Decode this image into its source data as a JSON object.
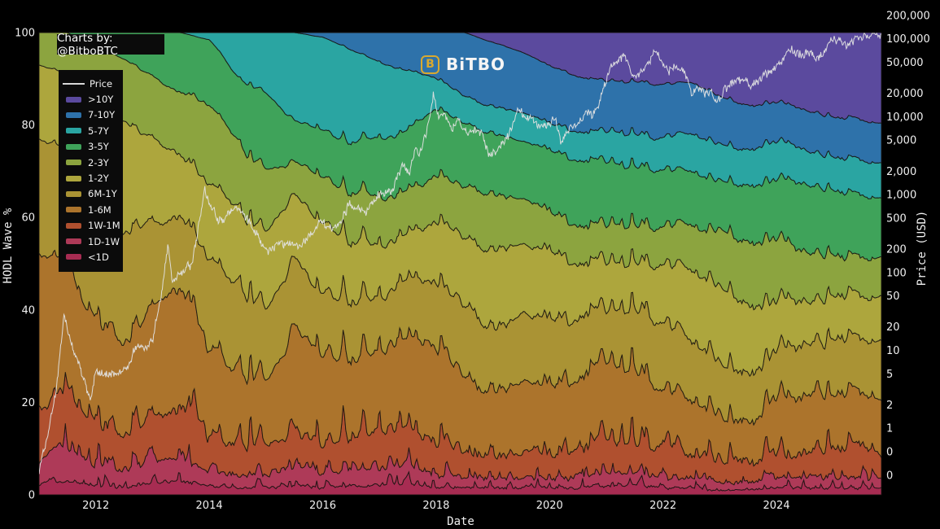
{
  "header": {
    "attribution": "Charts by: @BitboBTC",
    "logo_symbol": "B",
    "logo_text": "BiTBO"
  },
  "axes": {
    "x": {
      "title": "Date",
      "range": [
        2011.0,
        2025.85
      ],
      "ticks": [
        2012,
        2014,
        2016,
        2018,
        2020,
        2022,
        2024
      ]
    },
    "y_left": {
      "title": "HODL Wave %",
      "range": [
        0,
        100
      ],
      "ticks": [
        100,
        80,
        60,
        40,
        20,
        0
      ]
    },
    "y_right": {
      "title": "Price (USD)",
      "scale": "log",
      "ticks": [
        {
          "value": 200000,
          "label": "200,000"
        },
        {
          "value": 100000,
          "label": "100,000"
        },
        {
          "value": 50000,
          "label": "50,000"
        },
        {
          "value": 20000,
          "label": "20,000"
        },
        {
          "value": 10000,
          "label": "10,000"
        },
        {
          "value": 5000,
          "label": "5,000"
        },
        {
          "value": 2000,
          "label": "2,000"
        },
        {
          "value": 1000,
          "label": "1,000"
        },
        {
          "value": 500,
          "label": "500"
        },
        {
          "value": 200,
          "label": "200"
        },
        {
          "value": 100,
          "label": "100"
        },
        {
          "value": 50,
          "label": "50"
        },
        {
          "value": 20,
          "label": "20"
        },
        {
          "value": 10,
          "label": "10"
        },
        {
          "value": 5,
          "label": "5"
        },
        {
          "value": 2,
          "label": "2"
        },
        {
          "value": 1,
          "label": "1"
        },
        {
          "value": 0.5,
          "label": "0"
        },
        {
          "value": 0.25,
          "label": "0"
        }
      ]
    }
  },
  "colors": {
    "background": "#000000",
    "band_stroke": "#181410",
    "text": "#f0f0f0",
    "price_line": "#e2e2e2",
    "logo_gold": "#d9a92f"
  },
  "chart_data": {
    "type": "area",
    "stacked": true,
    "title": "",
    "xlabel": "Date",
    "ylabel_left": "HODL Wave %",
    "ylabel_right": "Price (USD)",
    "x_range": [
      2011.0,
      2025.85
    ],
    "x": [
      2011.0,
      2011.5,
      2012.0,
      2012.5,
      2013.0,
      2013.5,
      2014.0,
      2014.5,
      2015.0,
      2015.5,
      2016.0,
      2016.5,
      2017.0,
      2017.5,
      2018.0,
      2018.5,
      2019.0,
      2019.5,
      2020.0,
      2020.5,
      2021.0,
      2021.5,
      2022.0,
      2022.5,
      2023.0,
      2023.5,
      2024.0,
      2024.5,
      2025.0,
      2025.85
    ],
    "series": [
      {
        "name": "<1D",
        "color": "#a72c52",
        "values": [
          2,
          3,
          2,
          1.5,
          2.5,
          3,
          2,
          1.5,
          1.5,
          2,
          1.5,
          2,
          2,
          2.5,
          1.5,
          1.5,
          1.5,
          1.5,
          1.5,
          1.5,
          2,
          2,
          1.5,
          1.5,
          1,
          1,
          1.5,
          1.5,
          1.5,
          1.5
        ]
      },
      {
        "name": "1D-1W",
        "color": "#ae3a58",
        "values": [
          5,
          7,
          4,
          3.5,
          4.5,
          5,
          3,
          2.5,
          2.5,
          4,
          3,
          3,
          3.5,
          4,
          2.5,
          2,
          2,
          2,
          2,
          2,
          3,
          2.5,
          2,
          2,
          1.5,
          1.5,
          2,
          2,
          2,
          2
        ]
      },
      {
        "name": "1W-1M",
        "color": "#b0502f",
        "values": [
          10,
          12,
          8,
          7,
          9,
          10,
          7,
          6,
          6,
          6,
          6,
          6,
          7,
          8,
          6,
          5,
          4.5,
          5,
          5,
          5,
          7,
          6,
          5,
          5,
          4,
          4,
          5,
          5,
          5,
          5
        ]
      },
      {
        "name": "1-6M",
        "color": "#ac742c",
        "values": [
          34,
          28,
          22,
          20,
          24,
          26,
          19,
          16,
          14,
          22,
          20,
          17,
          18,
          20,
          21,
          16,
          14,
          15,
          15,
          15,
          17,
          16,
          12,
          12,
          9,
          9,
          12,
          13,
          12,
          12
        ]
      },
      {
        "name": "6M-1Y",
        "color": "#aa9334",
        "values": [
          26,
          24,
          26,
          25,
          18,
          15,
          20,
          18,
          16,
          15,
          13,
          13,
          12,
          12,
          14,
          16,
          14,
          14.5,
          14,
          13,
          11,
          13,
          15,
          13,
          12,
          10,
          10,
          11,
          12,
          12.5
        ]
      },
      {
        "name": "1-2Y",
        "color": "#ada63d",
        "values": [
          16,
          17,
          23,
          24,
          18,
          14,
          16.5,
          17,
          17,
          14.6,
          15,
          13,
          11,
          10,
          13,
          15,
          17,
          15.5,
          14.5,
          12,
          10,
          10,
          13,
          15,
          17,
          15,
          11,
          9,
          9,
          10
        ]
      },
      {
        "name": "2-3Y",
        "color": "#8ca43f",
        "values": [
          7,
          9,
          12,
          13,
          14,
          14,
          17,
          15,
          13,
          7.7,
          10,
          11,
          10,
          9,
          10,
          11,
          12,
          10,
          9,
          9,
          8,
          8,
          8.5,
          9.5,
          12,
          14,
          13.5,
          11,
          9,
          8
        ]
      },
      {
        "name": "3-5Y",
        "color": "#3fa35a",
        "values": [
          0,
          0,
          3,
          6,
          10,
          13,
          14,
          14,
          17,
          9.3,
          10,
          11,
          13,
          13,
          15,
          14,
          13,
          12,
          13,
          14,
          14,
          13,
          12,
          11.5,
          11,
          12,
          13,
          14.5,
          14.5,
          13
        ]
      },
      {
        "name": "5-7Y",
        "color": "#2aa5a2",
        "values": [
          0,
          0,
          0,
          0,
          0,
          0,
          1.5,
          10,
          13,
          19.4,
          20.5,
          20,
          17,
          13,
          7,
          6,
          6,
          6.2,
          6,
          6,
          6.5,
          7,
          7.5,
          8,
          8,
          8,
          8,
          7.5,
          7.5,
          7.5
        ]
      },
      {
        "name": "7-10Y",
        "color": "#2e72aa",
        "values": [
          0,
          0,
          0,
          0,
          0,
          0,
          0,
          0,
          0,
          0,
          1,
          4,
          6.5,
          8.5,
          10,
          13.5,
          14,
          13,
          12.5,
          12,
          11,
          11.5,
          12,
          11,
          10.5,
          10,
          9,
          8.5,
          9,
          9
        ]
      },
      {
        "name": ">10Y",
        "color": "#5b4a9e",
        "values": [
          0,
          0,
          0,
          0,
          0,
          0,
          0,
          0,
          0,
          0,
          0,
          0,
          0,
          0,
          0,
          0,
          2,
          4.3,
          7.5,
          9.5,
          10.5,
          10.5,
          11.5,
          11,
          14,
          15.5,
          15,
          17,
          18.5,
          19.5
        ]
      }
    ],
    "price_series": {
      "name": "Price",
      "color": "#e2e2e2",
      "points": [
        [
          2011.0,
          0.3
        ],
        [
          2011.15,
          0.8
        ],
        [
          2011.3,
          3
        ],
        [
          2011.44,
          31
        ],
        [
          2011.5,
          17
        ],
        [
          2011.6,
          11
        ],
        [
          2011.75,
          5
        ],
        [
          2011.9,
          2.3
        ],
        [
          2012.0,
          5.3
        ],
        [
          2012.2,
          4.9
        ],
        [
          2012.4,
          5.1
        ],
        [
          2012.6,
          6.7
        ],
        [
          2012.7,
          11
        ],
        [
          2012.85,
          10.5
        ],
        [
          2013.0,
          13.5
        ],
        [
          2013.15,
          47
        ],
        [
          2013.27,
          238
        ],
        [
          2013.35,
          77
        ],
        [
          2013.5,
          97
        ],
        [
          2013.7,
          130
        ],
        [
          2013.85,
          600
        ],
        [
          2013.92,
          1150
        ],
        [
          2014.0,
          750
        ],
        [
          2014.1,
          620
        ],
        [
          2014.15,
          450
        ],
        [
          2014.3,
          500
        ],
        [
          2014.45,
          650
        ],
        [
          2014.6,
          580
        ],
        [
          2014.8,
          350
        ],
        [
          2015.04,
          175
        ],
        [
          2015.2,
          245
        ],
        [
          2015.35,
          235
        ],
        [
          2015.55,
          220
        ],
        [
          2015.7,
          260
        ],
        [
          2015.85,
          330
        ],
        [
          2015.95,
          460
        ],
        [
          2016.1,
          375
        ],
        [
          2016.3,
          420
        ],
        [
          2016.47,
          770
        ],
        [
          2016.55,
          660
        ],
        [
          2016.75,
          615
        ],
        [
          2016.9,
          740
        ],
        [
          2017.0,
          1000
        ],
        [
          2017.15,
          1200
        ],
        [
          2017.2,
          1000
        ],
        [
          2017.4,
          2500
        ],
        [
          2017.53,
          1900
        ],
        [
          2017.65,
          4300
        ],
        [
          2017.7,
          3000
        ],
        [
          2017.85,
          7500
        ],
        [
          2017.95,
          19500
        ],
        [
          2018.05,
          8500
        ],
        [
          2018.15,
          11500
        ],
        [
          2018.25,
          7000
        ],
        [
          2018.4,
          9300
        ],
        [
          2018.5,
          6300
        ],
        [
          2018.65,
          6500
        ],
        [
          2018.8,
          6400
        ],
        [
          2018.92,
          3300
        ],
        [
          2019.05,
          3600
        ],
        [
          2019.25,
          5300
        ],
        [
          2019.45,
          12900
        ],
        [
          2019.55,
          10500
        ],
        [
          2019.65,
          10000
        ],
        [
          2019.8,
          8000
        ],
        [
          2019.95,
          7200
        ],
        [
          2020.1,
          9500
        ],
        [
          2020.2,
          4900
        ],
        [
          2020.35,
          7000
        ],
        [
          2020.55,
          9200
        ],
        [
          2020.65,
          11500
        ],
        [
          2020.75,
          10500
        ],
        [
          2020.85,
          13800
        ],
        [
          2020.95,
          23000
        ],
        [
          2021.0,
          29000
        ],
        [
          2021.05,
          40000
        ],
        [
          2021.15,
          48000
        ],
        [
          2021.28,
          58000
        ],
        [
          2021.32,
          63000
        ],
        [
          2021.45,
          37000
        ],
        [
          2021.55,
          31500
        ],
        [
          2021.65,
          42000
        ],
        [
          2021.75,
          48000
        ],
        [
          2021.85,
          66000
        ],
        [
          2021.88,
          69000
        ],
        [
          2022.0,
          46500
        ],
        [
          2022.1,
          38000
        ],
        [
          2022.2,
          44000
        ],
        [
          2022.35,
          39000
        ],
        [
          2022.45,
          29000
        ],
        [
          2022.5,
          19000
        ],
        [
          2022.6,
          23000
        ],
        [
          2022.75,
          20000
        ],
        [
          2022.85,
          20500
        ],
        [
          2022.9,
          15800
        ],
        [
          2023.0,
          16600
        ],
        [
          2023.1,
          23000
        ],
        [
          2023.2,
          28000
        ],
        [
          2023.3,
          28000
        ],
        [
          2023.4,
          30000
        ],
        [
          2023.55,
          26000
        ],
        [
          2023.7,
          29000
        ],
        [
          2023.8,
          34500
        ],
        [
          2023.9,
          37000
        ],
        [
          2024.0,
          44000
        ],
        [
          2024.1,
          48000
        ],
        [
          2024.2,
          68000
        ],
        [
          2024.25,
          73000
        ],
        [
          2024.35,
          64000
        ],
        [
          2024.5,
          61000
        ],
        [
          2024.6,
          67000
        ],
        [
          2024.7,
          55000
        ],
        [
          2024.8,
          63000
        ],
        [
          2024.88,
          75000
        ],
        [
          2024.95,
          99000
        ],
        [
          2025.0,
          94000
        ],
        [
          2025.1,
          102000
        ],
        [
          2025.15,
          84000
        ],
        [
          2025.25,
          83000
        ],
        [
          2025.35,
          95000
        ],
        [
          2025.45,
          104000
        ],
        [
          2025.55,
          108000
        ],
        [
          2025.6,
          101000
        ],
        [
          2025.7,
          118000
        ],
        [
          2025.8,
          112000
        ],
        [
          2025.85,
          110000
        ]
      ]
    },
    "legend": {
      "price_label": "Price",
      "band_labels_top_to_bottom": [
        ">10Y",
        "7-10Y",
        "5-7Y",
        "3-5Y",
        "2-3Y",
        "1-2Y",
        "6M-1Y",
        "1-6M",
        "1W-1M",
        "1D-1W",
        "<1D"
      ]
    }
  }
}
